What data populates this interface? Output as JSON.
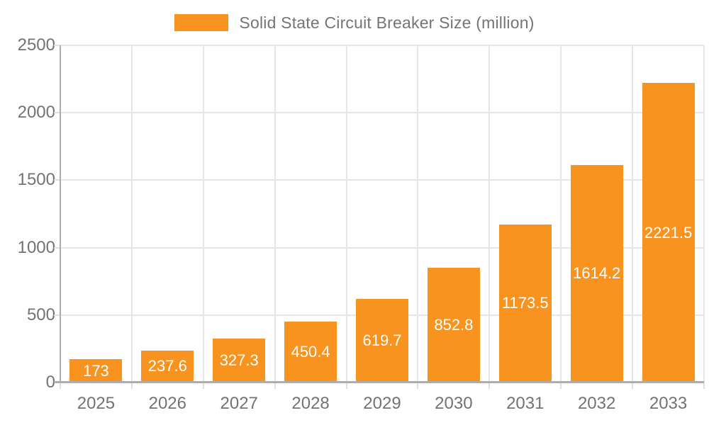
{
  "chart_data": {
    "type": "bar",
    "title": "Solid State Circuit Breaker Size (million)",
    "categories": [
      "2025",
      "2026",
      "2027",
      "2028",
      "2029",
      "2030",
      "2031",
      "2032",
      "2033"
    ],
    "values": [
      173,
      237.6,
      327.3,
      450.4,
      619.7,
      852.8,
      1173.5,
      1614.2,
      2221.5
    ],
    "value_labels": [
      "173",
      "237.6",
      "327.3",
      "450.4",
      "619.7",
      "852.8",
      "1173.5",
      "1614.2",
      "2221.5"
    ],
    "xlabel": "",
    "ylabel": "",
    "ylim": [
      0,
      2500
    ],
    "yticks": [
      0,
      500,
      1000,
      1500,
      2000,
      2500
    ],
    "ytick_labels": [
      "0",
      "500",
      "1000",
      "1500",
      "2000",
      "2500"
    ],
    "grid": true,
    "legend_position": "top-center",
    "colors": {
      "bar": "#F7931E",
      "bar_label_text": "#FFFFFF",
      "axis_text": "#737373",
      "legend_text": "#757575",
      "gridline": "#E6E6E6",
      "axis_line": "#ADADAD",
      "tick": "#E0E0E0",
      "background": "#FFFFFF"
    }
  }
}
